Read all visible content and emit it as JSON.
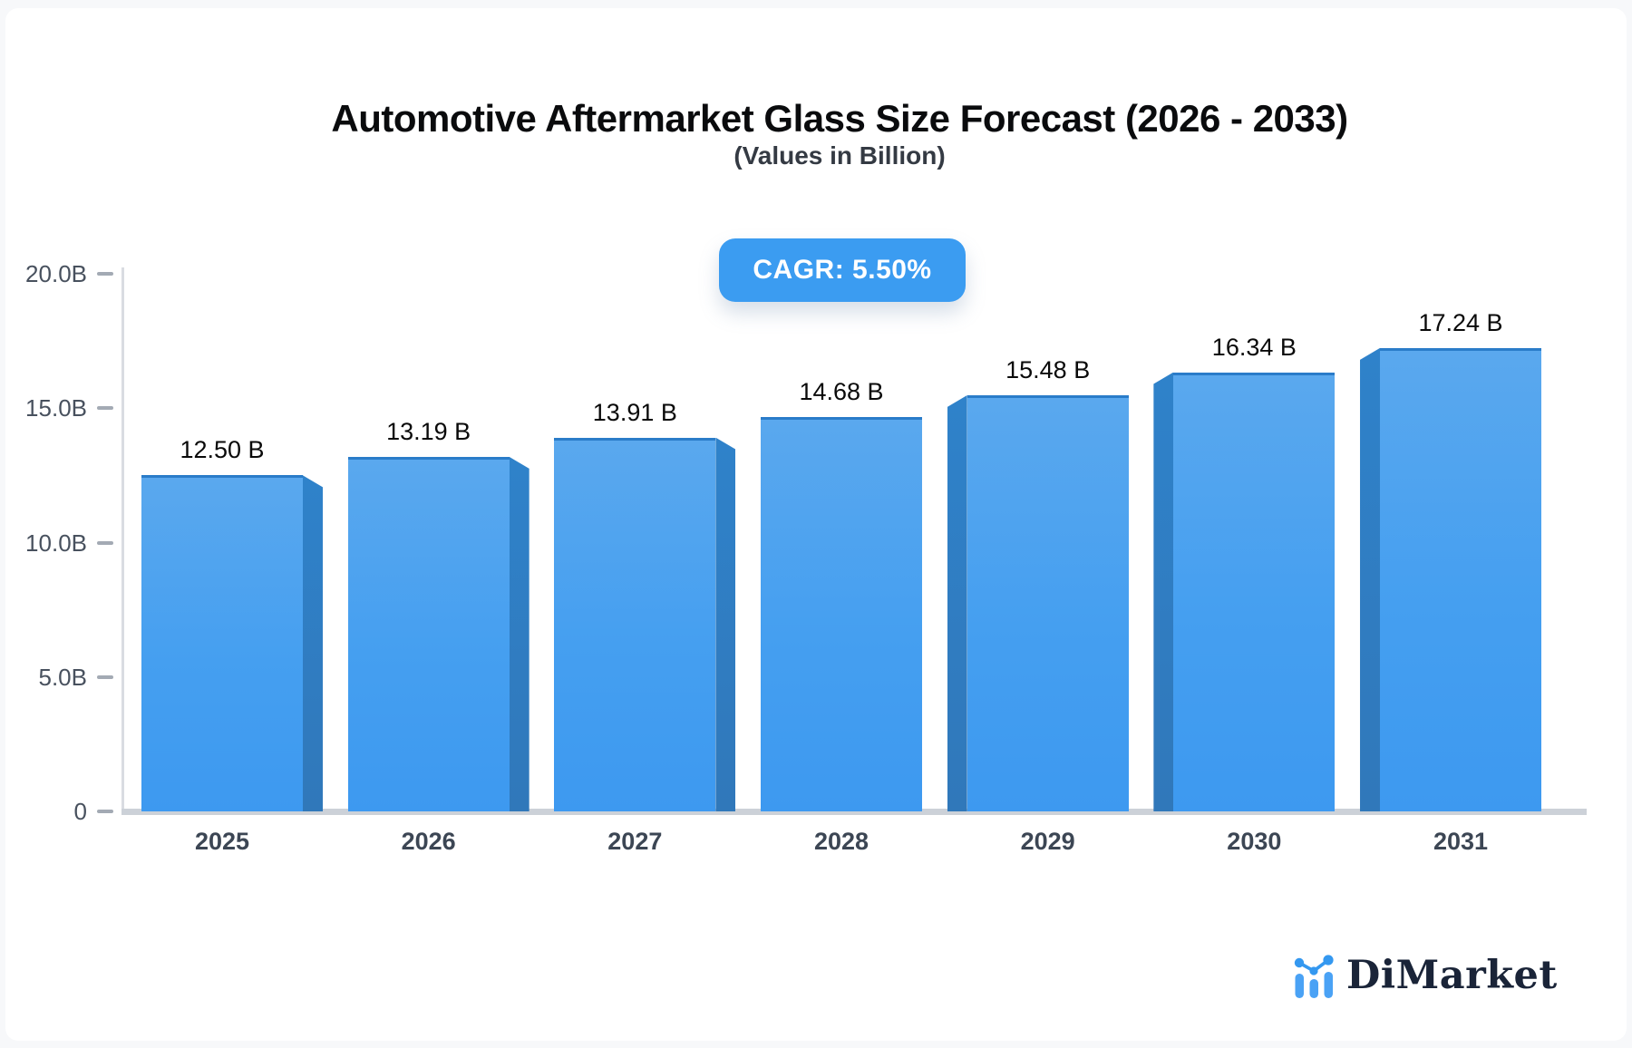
{
  "page": {
    "background": "#f7f8fa",
    "card_background": "#ffffff"
  },
  "header": {
    "title": "Automotive Aftermarket Glass Size Forecast (2026 - 2033)",
    "subtitle": "(Values in Billion)",
    "badge_label": "CAGR: 5.50%"
  },
  "chart_data": {
    "type": "bar",
    "title": "Automotive Aftermarket Glass Size Forecast (2026 - 2033)",
    "subtitle": "(Values in Billion)",
    "annotation": "CAGR: 5.50%",
    "categories": [
      "2025",
      "2026",
      "2027",
      "2028",
      "2029",
      "2030",
      "2031"
    ],
    "values": [
      12.5,
      13.19,
      13.91,
      14.68,
      15.48,
      16.34,
      17.24
    ],
    "value_labels": [
      "12.50 B",
      "13.19 B",
      "13.91 B",
      "14.68 B",
      "15.48 B",
      "16.34 B",
      "17.24 B"
    ],
    "xlabel": "",
    "ylabel": "",
    "ylim": [
      0,
      20
    ],
    "yticks": [
      {
        "value": 0,
        "label": "0"
      },
      {
        "value": 5,
        "label": "5.0B"
      },
      {
        "value": 10,
        "label": "10.0B"
      },
      {
        "value": 15,
        "label": "15.0B"
      },
      {
        "value": 20,
        "label": "20.0B"
      }
    ],
    "grid": false,
    "legend": false,
    "style": {
      "accent": "#3b9cf1",
      "bar_top": "#5aa8ee",
      "bar_mid": "#459ff0",
      "bar_bottom": "#3d99f0",
      "bar_edge": "#2a7cc9",
      "bar_side_top": "#2f82ca",
      "bar_side_bottom": "#3078ba",
      "axis_color": "#d9dce2",
      "baseline_color": "#ccd1d8"
    }
  },
  "branding": {
    "logo_text": "DiMarket",
    "logo_icon": "mini-bar-chart-with-trend-dots",
    "logo_icon_color": "#4aa2f5",
    "logo_text_color": "#1a2438"
  }
}
